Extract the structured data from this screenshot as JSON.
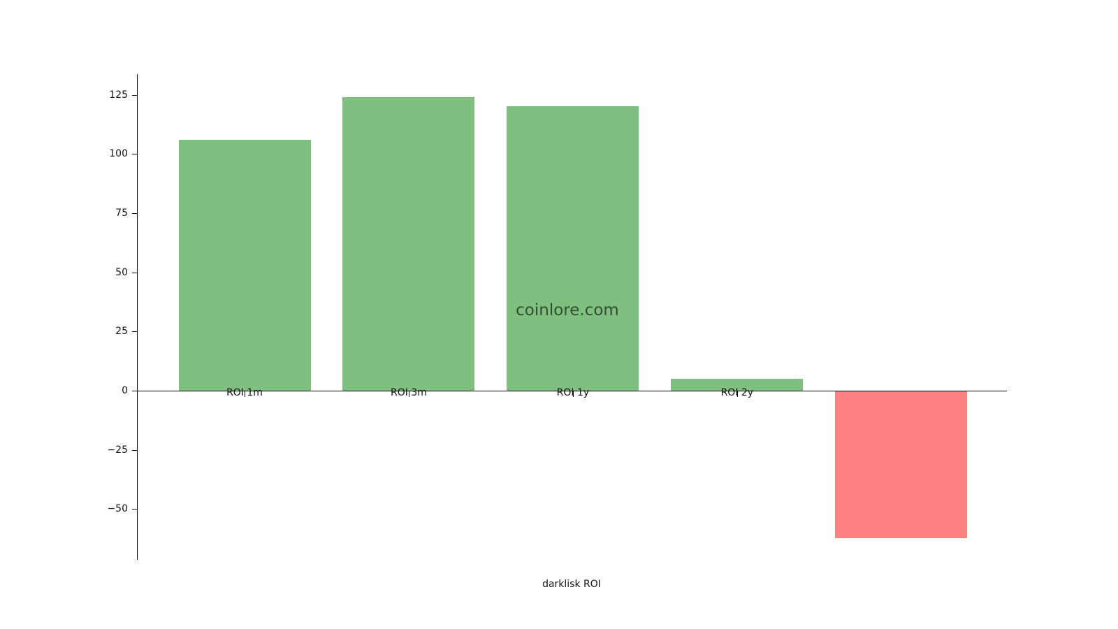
{
  "watermark_text": "coinlore.com",
  "footer_label": "darklisk ROI",
  "colors": {
    "positive_bar": "#7fbf7f",
    "negative_bar": "#ff8080",
    "axis": "#000000",
    "text": "#151515",
    "watermark": "rgba(0,0,0,0.6)"
  },
  "chart_data": {
    "type": "bar",
    "title": "",
    "xlabel": "darklisk ROI",
    "ylabel": "",
    "watermark": "coinlore.com",
    "categories": [
      "ROI 1m",
      "ROI 3m",
      "ROI 1y",
      "ROI 2y",
      ""
    ],
    "values": [
      106,
      124,
      120,
      5,
      -62
    ],
    "bar_colors": [
      "#7fbf7f",
      "#7fbf7f",
      "#7fbf7f",
      "#7fbf7f",
      "#ff8080"
    ],
    "yticks": [
      125,
      100,
      75,
      50,
      25,
      0,
      -25,
      -50
    ],
    "ytick_labels": [
      "125",
      "100",
      "75",
      "50",
      "25",
      "0",
      "−25",
      "−50"
    ],
    "ylim": [
      -72,
      134
    ],
    "grid": false,
    "legend": null
  }
}
